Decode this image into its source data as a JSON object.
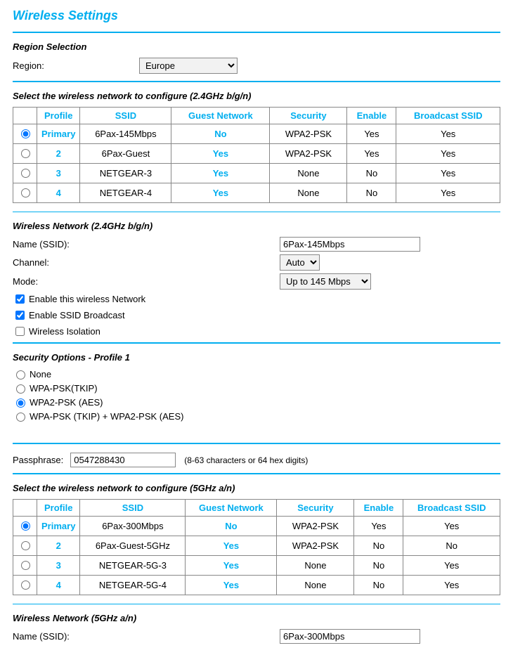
{
  "page": {
    "title": "Wireless Settings"
  },
  "region": {
    "heading": "Region Selection",
    "label": "Region:",
    "value": "Europe"
  },
  "table24": {
    "heading": "Select the wireless network to configure (2.4GHz b/g/n)",
    "headers": [
      "",
      "Profile",
      "SSID",
      "Guest Network",
      "Security",
      "Enable",
      "Broadcast SSID"
    ],
    "rows": [
      {
        "selected": true,
        "profile": "Primary",
        "ssid": "6Pax-145Mbps",
        "guest": "No",
        "security": "WPA2-PSK",
        "enable": "Yes",
        "broadcast": "Yes"
      },
      {
        "selected": false,
        "profile": "2",
        "ssid": "6Pax-Guest",
        "guest": "Yes",
        "security": "WPA2-PSK",
        "enable": "Yes",
        "broadcast": "Yes"
      },
      {
        "selected": false,
        "profile": "3",
        "ssid": "NETGEAR-3",
        "guest": "Yes",
        "security": "None",
        "enable": "No",
        "broadcast": "Yes"
      },
      {
        "selected": false,
        "profile": "4",
        "ssid": "NETGEAR-4",
        "guest": "Yes",
        "security": "None",
        "enable": "No",
        "broadcast": "Yes"
      }
    ]
  },
  "net24": {
    "heading": "Wireless Network (2.4GHz b/g/n)",
    "name_label": "Name (SSID):",
    "name_value": "6Pax-145Mbps",
    "channel_label": "Channel:",
    "channel_value": "Auto",
    "mode_label": "Mode:",
    "mode_value": "Up to 145 Mbps",
    "enable_net": {
      "label": "Enable this wireless Network",
      "checked": true
    },
    "enable_bcast": {
      "label": "Enable SSID Broadcast",
      "checked": true
    },
    "isolation": {
      "label": "Wireless Isolation",
      "checked": false
    }
  },
  "sec24": {
    "heading": "Security Options - Profile 1",
    "options": [
      {
        "label": "None",
        "checked": false
      },
      {
        "label": "WPA-PSK(TKIP)",
        "checked": false
      },
      {
        "label": "WPA2-PSK (AES)",
        "checked": true
      },
      {
        "label": "WPA-PSK (TKIP) + WPA2-PSK (AES)",
        "checked": false
      }
    ]
  },
  "passphrase": {
    "label": "Passphrase:",
    "value": "0547288430",
    "hint": "(8-63 characters or 64 hex digits)"
  },
  "table5": {
    "heading": "Select the wireless network to configure (5GHz a/n)",
    "headers": [
      "",
      "Profile",
      "SSID",
      "Guest Network",
      "Security",
      "Enable",
      "Broadcast SSID"
    ],
    "rows": [
      {
        "selected": true,
        "profile": "Primary",
        "ssid": "6Pax-300Mbps",
        "guest": "No",
        "security": "WPA2-PSK",
        "enable": "Yes",
        "broadcast": "Yes"
      },
      {
        "selected": false,
        "profile": "2",
        "ssid": "6Pax-Guest-5GHz",
        "guest": "Yes",
        "security": "WPA2-PSK",
        "enable": "No",
        "broadcast": "No"
      },
      {
        "selected": false,
        "profile": "3",
        "ssid": "NETGEAR-5G-3",
        "guest": "Yes",
        "security": "None",
        "enable": "No",
        "broadcast": "Yes"
      },
      {
        "selected": false,
        "profile": "4",
        "ssid": "NETGEAR-5G-4",
        "guest": "Yes",
        "security": "None",
        "enable": "No",
        "broadcast": "Yes"
      }
    ]
  },
  "net5": {
    "heading": "Wireless Network (5GHz a/n)",
    "name_label": "Name (SSID):",
    "name_value": "6Pax-300Mbps"
  },
  "colors": {
    "accent": "#00aeef",
    "border": "#888888"
  }
}
